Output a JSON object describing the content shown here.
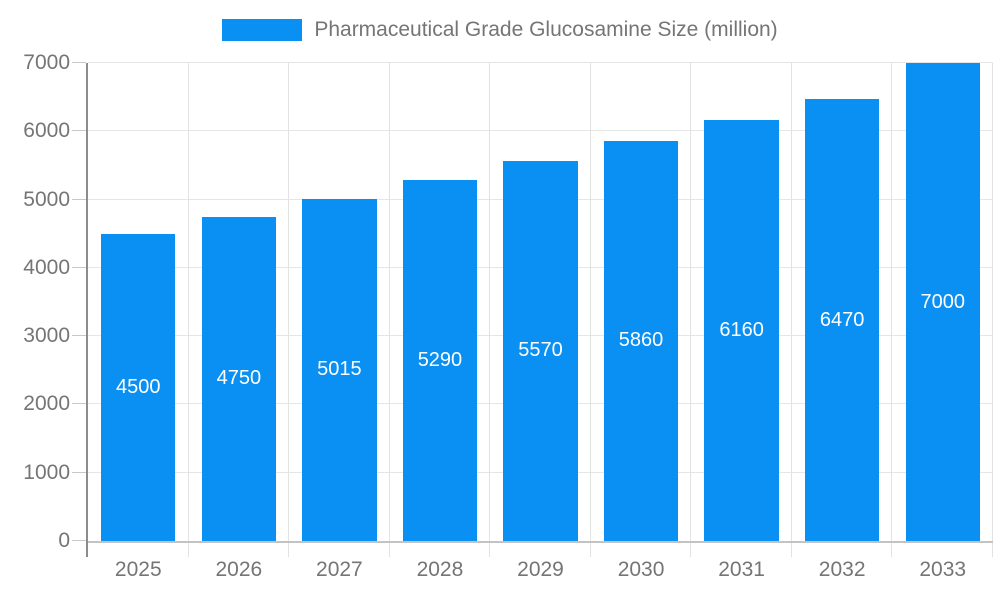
{
  "legend": {
    "series_label": "Pharmaceutical Grade Glucosamine Size (million)"
  },
  "chart_data": {
    "type": "bar",
    "title": "",
    "categories": [
      "2025",
      "2026",
      "2027",
      "2028",
      "2029",
      "2030",
      "2031",
      "2032",
      "2033"
    ],
    "values": [
      4500,
      4750,
      5015,
      5290,
      5570,
      5860,
      6160,
      6470,
      7000
    ],
    "series": [
      {
        "name": "Pharmaceutical Grade Glucosamine Size (million)",
        "values": [
          4500,
          4750,
          5015,
          5290,
          5570,
          5860,
          6160,
          6470,
          7000
        ]
      }
    ],
    "xlabel": "",
    "ylabel": "",
    "ylim": [
      0,
      7000
    ],
    "ytick_step": 1000,
    "yticks": [
      0,
      1000,
      2000,
      3000,
      4000,
      5000,
      6000,
      7000
    ],
    "grid": true,
    "legend_position": "top",
    "value_labels": "inside-center",
    "colors": {
      "bar": "#0a8ff2",
      "bar_value_text": "#ffffff",
      "axis_text": "#757575",
      "gridline": "#e6e6e6",
      "y_axis_line": "#8c8c8c",
      "x_axis_line": "#c3c3c3"
    }
  }
}
